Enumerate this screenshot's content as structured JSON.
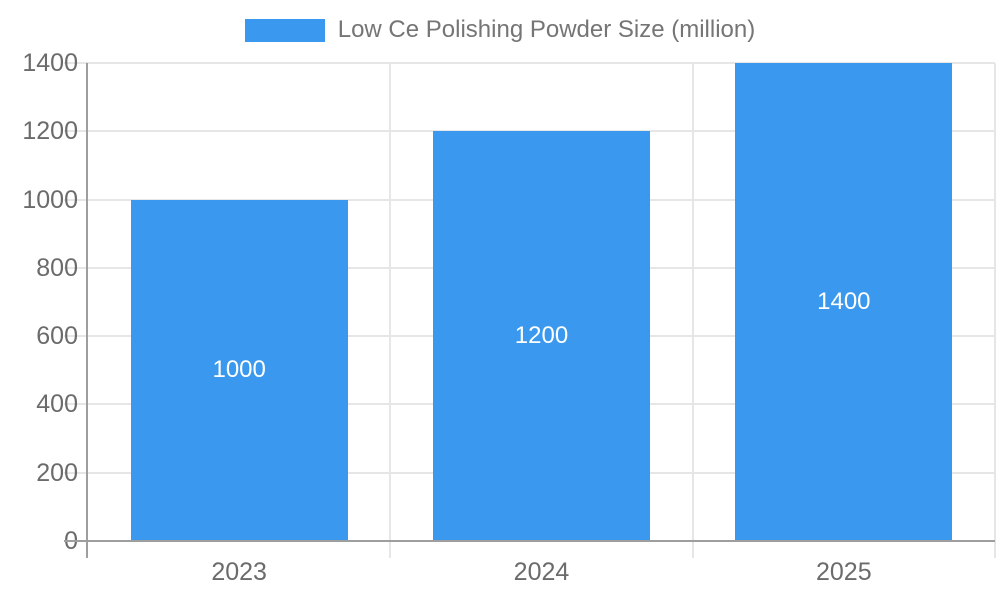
{
  "legend": {
    "label": "Low Ce Polishing Powder Size (million)"
  },
  "chart_data": {
    "type": "bar",
    "title": "Low Ce Polishing Powder Size (million)",
    "categories": [
      "2023",
      "2024",
      "2025"
    ],
    "series": [
      {
        "name": "Low Ce Polishing Powder Size (million)",
        "values": [
          1000,
          1200,
          1400
        ]
      }
    ],
    "values": [
      1000,
      1200,
      1400
    ],
    "data_labels": [
      "1000",
      "1200",
      "1400"
    ],
    "xlabel": "",
    "ylabel": "",
    "ylim": [
      0,
      1400
    ],
    "yticks": [
      0,
      200,
      400,
      600,
      800,
      1000,
      1200,
      1400
    ],
    "grid": true,
    "legend_position": "top-center",
    "data_label_position": "inside-center",
    "colors": {
      "bar": "#3A99EE",
      "grid": "#E6E6E6",
      "axis": "#9E9E9E",
      "tick_label": "#6B6B6B",
      "legend_text": "#757575",
      "data_label": "#FFFFFF",
      "background": "#FFFFFF"
    }
  }
}
